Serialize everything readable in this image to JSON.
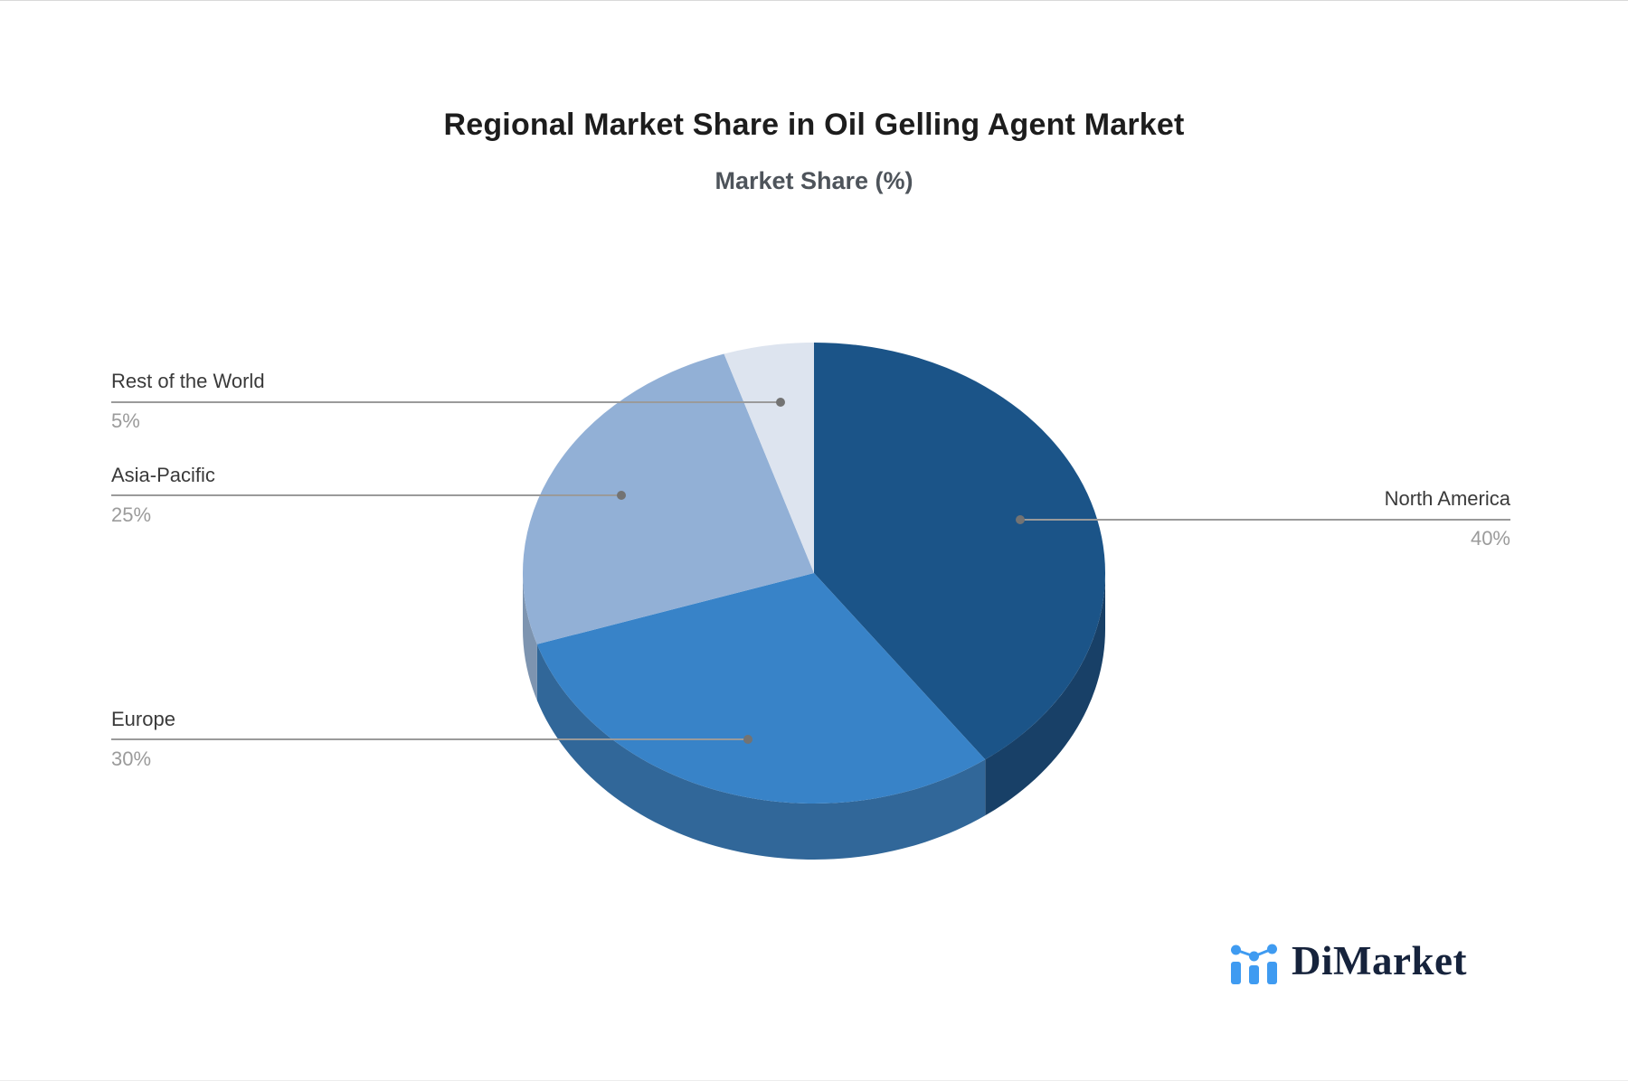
{
  "page": {
    "title": "Regional Market Share in Oil Gelling Agent Market",
    "subtitle": "Market Share (%)"
  },
  "chart_data": {
    "type": "pie",
    "title": "Regional Market Share in Oil Gelling Agent Market",
    "subtitle": "Market Share (%)",
    "unit": "%",
    "effect_3d": true,
    "start_angle_deg": 0,
    "direction": "clockwise",
    "legend_position": "none",
    "categories": [
      "North America",
      "Europe",
      "Asia-Pacific",
      "Rest of the World"
    ],
    "values": [
      40,
      30,
      25,
      5
    ],
    "points": [
      {
        "id": "north-america",
        "name": "North America",
        "value": 40,
        "label": "40%",
        "color": "#1b5488",
        "side_color": "#184067"
      },
      {
        "id": "europe",
        "name": "Europe",
        "value": 30,
        "label": "30%",
        "color": "#3883c8",
        "side_color": "#316799"
      },
      {
        "id": "asia-pacific",
        "name": "Asia-Pacific",
        "value": 25,
        "label": "25%",
        "color": "#92b0d6",
        "side_color": "#7d94b0"
      },
      {
        "id": "rest-of-the-world",
        "name": "Rest of the World",
        "value": 5,
        "label": "5%",
        "color": "#dde4ef",
        "side_color": "#c3cddc"
      }
    ],
    "leader_line_color": "#9a9a9a",
    "leader_dot_color": "#737373",
    "label_text_color": "#3a3a3a",
    "percent_text_color": "#9b9b9b"
  },
  "logo": {
    "text": "DiMarket",
    "icon": "bar-line-chart-icon",
    "icon_color": "#3f9bf1",
    "text_color": "#16233c"
  }
}
